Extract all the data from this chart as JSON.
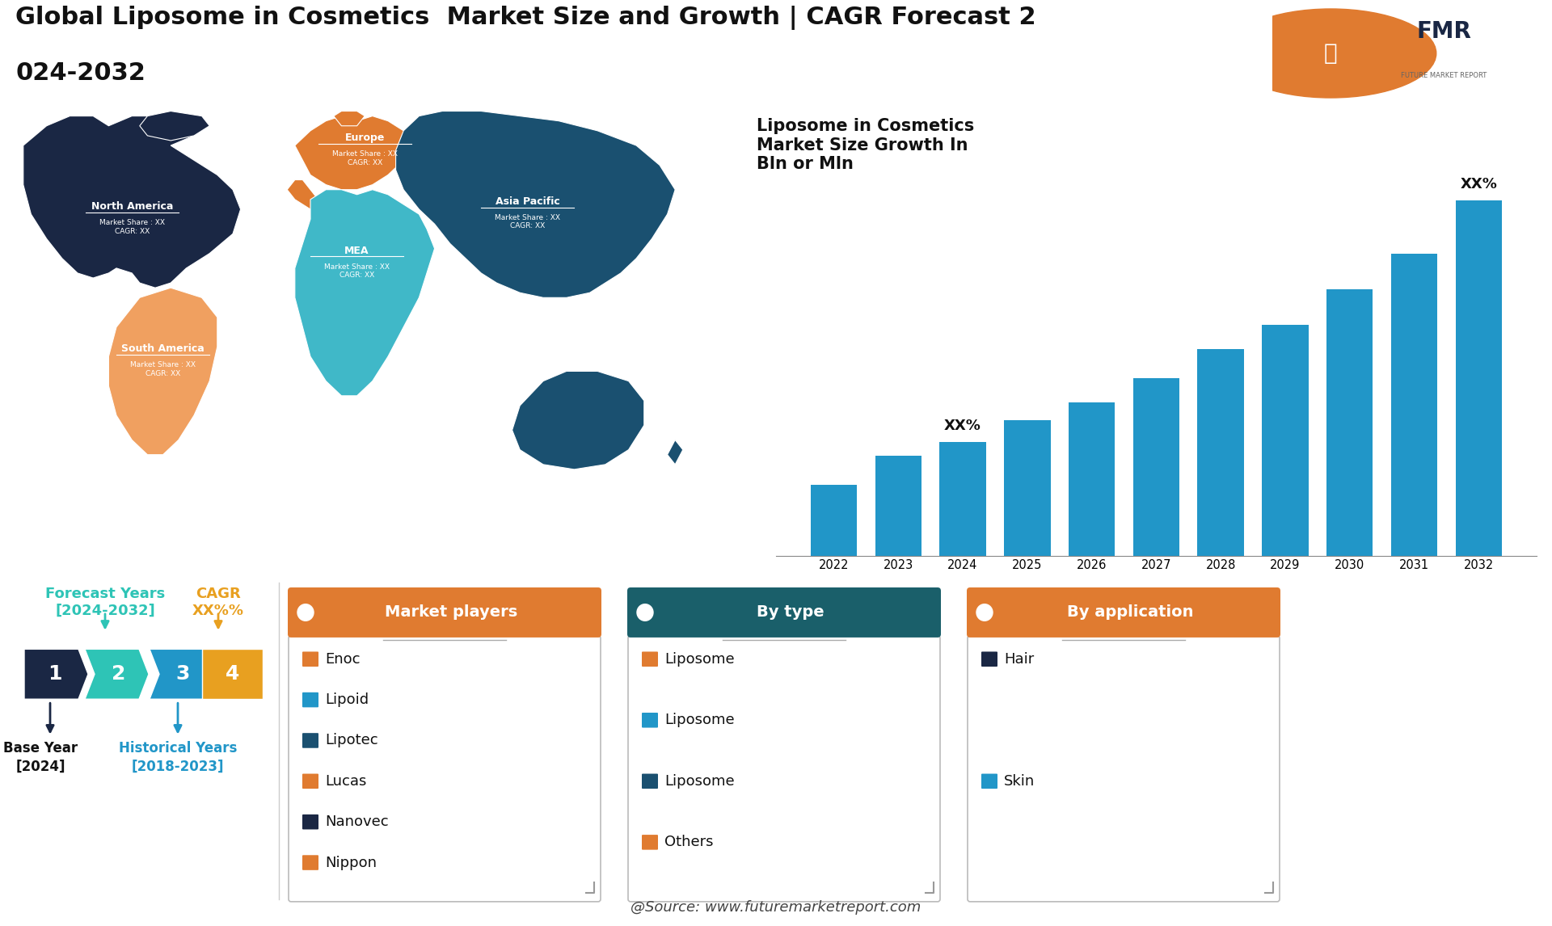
{
  "title_line1": "Global Liposome in Cosmetics  Market Size and Growth | CAGR Forecast 2",
  "title_line2": "024-2032",
  "title_fontsize": 22,
  "background_color": "#ffffff",
  "bar_years": [
    "2022",
    "2023",
    "2024",
    "2025",
    "2026",
    "2027",
    "2028",
    "2029",
    "2030",
    "2031",
    "2032"
  ],
  "bar_values": [
    2.0,
    2.8,
    3.2,
    3.8,
    4.3,
    5.0,
    5.8,
    6.5,
    7.5,
    8.5,
    10.0
  ],
  "bar_colors": [
    "#2196C8",
    "#2196C8",
    "#2196C8",
    "#2196C8",
    "#2196C8",
    "#2196C8",
    "#2196C8",
    "#2196C8",
    "#2196C8",
    "#2196C8",
    "#2196C8"
  ],
  "bar_label_2024": "XX%",
  "bar_label_2032": "XX%",
  "bar_chart_title": "Liposome in Cosmetics\nMarket Size Growth In\nBln or Mln",
  "na_color": "#1a2744",
  "sa_color": "#f0a060",
  "eu_color": "#e07b30",
  "mea_color": "#40b8c8",
  "ap_color": "#1a5070",
  "aus_color": "#1a5070",
  "forecast_label": "Forecast Years\n[2024-2032]",
  "forecast_color": "#2ec4b6",
  "cagr_label": "CAGR\nXX%%",
  "cagr_color": "#e8a020",
  "base_year_label": "Base Year\n[2024]",
  "historical_label": "Historical Years\n[2018-2023]",
  "historical_color": "#2196C8",
  "segments_colors": [
    "#1a2744",
    "#2ec4b6",
    "#2196C8",
    "#e8a020"
  ],
  "segments_labels": [
    "1",
    "2",
    "3",
    "4"
  ],
  "panel1_title": "Market players",
  "panel1_color": "#e07b30",
  "panel1_items": [
    "Enoc",
    "Lipoid",
    "Lipotec",
    "Lucas",
    "Nanovec",
    "Nippon"
  ],
  "panel1_bullet_colors": [
    "#e07b30",
    "#2196C8",
    "#1a5070",
    "#e07b30",
    "#1a2744",
    "#e07b30"
  ],
  "panel2_title": "By type",
  "panel2_color": "#1a5f6a",
  "panel2_items": [
    "Liposome",
    "Liposome",
    "Liposome",
    "Others"
  ],
  "panel2_bullet_colors": [
    "#e07b30",
    "#2196C8",
    "#1a5070",
    "#e07b30"
  ],
  "panel3_title": "By application",
  "panel3_color": "#e07b30",
  "panel3_items": [
    "Hair",
    "Skin"
  ],
  "panel3_bullet_colors": [
    "#1a2744",
    "#2196C8"
  ],
  "source_text": "@Source: www.futuremarketreport.com"
}
